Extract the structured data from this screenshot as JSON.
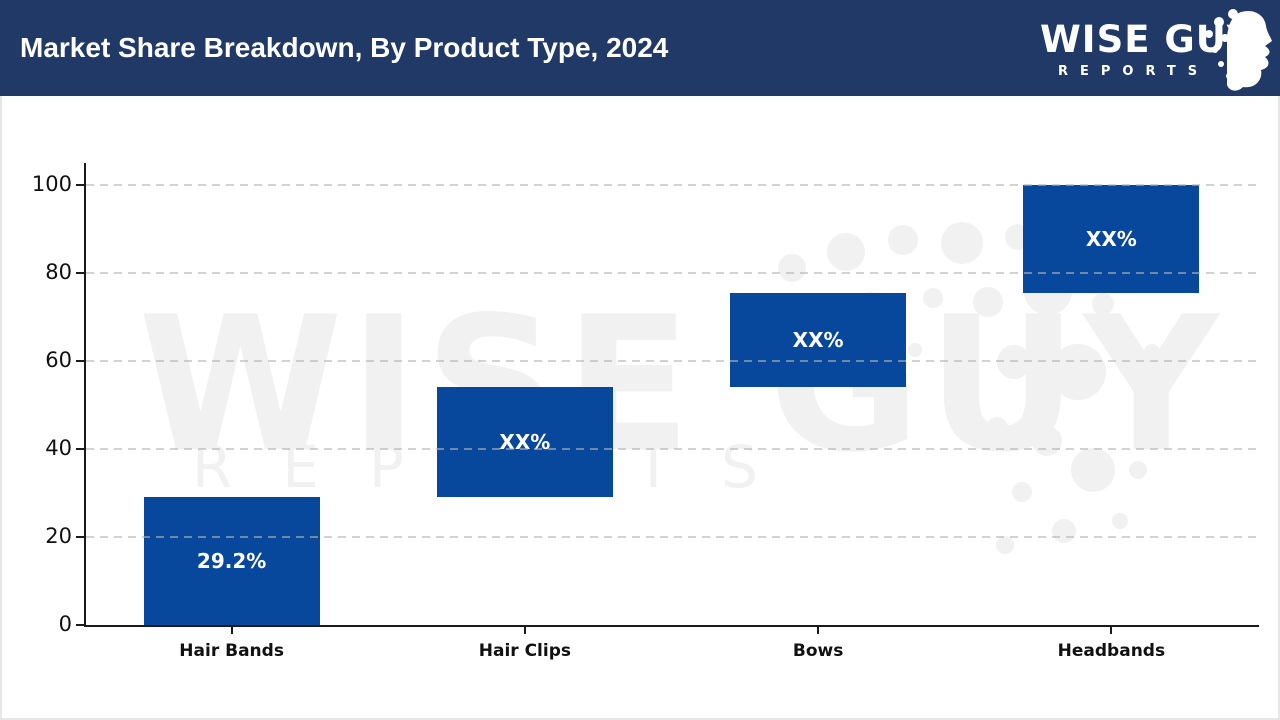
{
  "header": {
    "title": "Market Share Breakdown, By Product Type, 2024",
    "brand": {
      "line1": "WISE GUY",
      "line2": "REPORTS"
    }
  },
  "colors": {
    "header_bg": "#213966",
    "bar_fill": "#07489D",
    "title_text": "#ffffff",
    "axis_text": "#111111",
    "gridline": "#c8c8c8",
    "watermark": "#f1f1f1"
  },
  "chart_data": {
    "type": "bar",
    "subtype": "waterfall-floating-bars",
    "title": "Market Share Breakdown, By Product Type, 2024",
    "categories": [
      "Hair Bands",
      "Hair Clips",
      "Bows",
      "Headbands"
    ],
    "segments": [
      {
        "category": "Hair Bands",
        "start": 0,
        "end": 29.2,
        "label": "29.2%"
      },
      {
        "category": "Hair Clips",
        "start": 29.2,
        "end": 54.1,
        "label": "XX%"
      },
      {
        "category": "Bows",
        "start": 54.1,
        "end": 75.5,
        "label": "XX%"
      },
      {
        "category": "Headbands",
        "start": 75.5,
        "end": 100,
        "label": "XX%"
      }
    ],
    "values": [
      29.2,
      24.9,
      21.4,
      24.5
    ],
    "xlabel": "",
    "ylabel": "",
    "ylim": [
      0,
      100
    ],
    "yticks": [
      0,
      20,
      40,
      60,
      80,
      100
    ],
    "grid": "horizontal-dashed",
    "legend": "none",
    "bar_color": "#07489D",
    "watermark": {
      "line1": "WISE GUY",
      "line2": "R E P O R T S"
    }
  }
}
